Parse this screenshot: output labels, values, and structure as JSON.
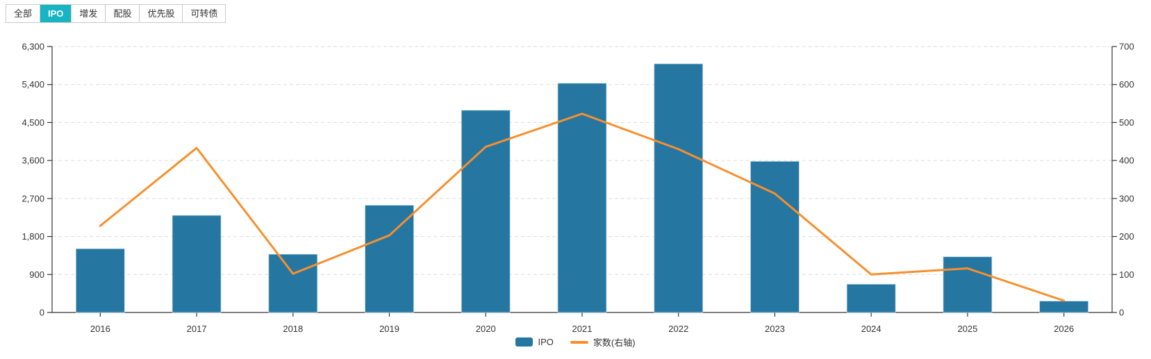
{
  "tabs": {
    "items": [
      {
        "label": "全部",
        "active": false
      },
      {
        "label": "IPO",
        "active": true
      },
      {
        "label": "增发",
        "active": false
      },
      {
        "label": "配股",
        "active": false
      },
      {
        "label": "优先股",
        "active": false
      },
      {
        "label": "可转债",
        "active": false
      }
    ]
  },
  "colors": {
    "bar": "#2577a2",
    "bar_edge": "#bcd8e8",
    "line": "#f78f2d",
    "tab_active_bg": "#17b4c3",
    "tab_active_text": "#ffffff",
    "axis_line": "#333333",
    "grid_line": "#dcdcdc",
    "axis_text": "#333333"
  },
  "chart_data": {
    "type": "bar",
    "categories": [
      "2016",
      "2017",
      "2018",
      "2019",
      "2020",
      "2021",
      "2022",
      "2023",
      "2024",
      "2025",
      "2026"
    ],
    "series": [
      {
        "name": "IPO",
        "type": "bar",
        "axis": "left",
        "values": [
          1510,
          2300,
          1380,
          2540,
          4790,
          5430,
          5890,
          3580,
          670,
          1320,
          270
        ]
      },
      {
        "name": "家数(右轴)",
        "type": "line",
        "axis": "right",
        "values": [
          228,
          433,
          102,
          203,
          436,
          523,
          430,
          313,
          100,
          116,
          31
        ]
      }
    ],
    "title": "",
    "xlabel": "",
    "ylabel_left": "",
    "ylabel_right": "",
    "left_axis": {
      "min": 0,
      "max": 6300,
      "step": 900,
      "tick_labels": [
        "0",
        "900",
        "1,800",
        "2,700",
        "3,600",
        "4,500",
        "5,400",
        "6,300"
      ]
    },
    "right_axis": {
      "min": 0,
      "max": 700,
      "step": 100,
      "tick_labels": [
        "0",
        "100",
        "200",
        "300",
        "400",
        "500",
        "600",
        "700"
      ]
    },
    "grid": true,
    "grid_style": "dashed",
    "legend_position": "bottom",
    "legend": [
      "IPO",
      "家数(右轴)"
    ]
  }
}
